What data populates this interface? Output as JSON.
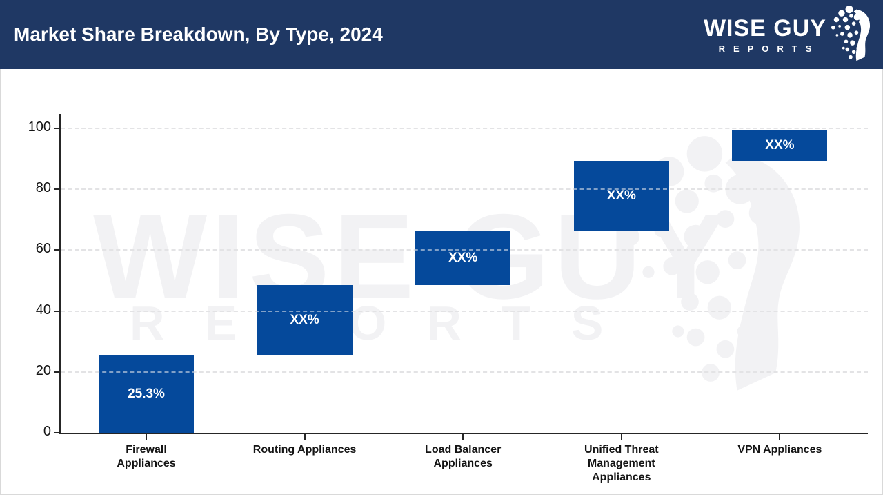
{
  "header": {
    "title": "Market Share Breakdown, By Type, 2024",
    "bg_color": "#1F3864",
    "logo": {
      "line1": "WISE GUY",
      "line2": "REPORTS"
    }
  },
  "watermark": {
    "line1": "WISE GUY",
    "line2": "REPORTS"
  },
  "chart_data": {
    "type": "bar",
    "subtype": "waterfall",
    "title": "Market Share Breakdown, By Type, 2024",
    "xlabel": "",
    "ylabel": "",
    "categories": [
      "Firewall Appliances",
      "Routing Appliances",
      "Load Balancer Appliances",
      "Unified Threat Management Appliances",
      "VPN Appliances"
    ],
    "category_lines": [
      [
        "Firewall",
        "Appliances"
      ],
      [
        "Routing Appliances"
      ],
      [
        "Load Balancer",
        "Appliances"
      ],
      [
        "Unified Threat",
        "Management",
        "Appliances"
      ],
      [
        "VPN Appliances"
      ]
    ],
    "segments": [
      {
        "category": "Firewall Appliances",
        "start": 0,
        "end": 25.3,
        "label": "25.3%"
      },
      {
        "category": "Routing Appliances",
        "start": 25.3,
        "end": 48.5,
        "label": "XX%"
      },
      {
        "category": "Load Balancer Appliances",
        "start": 48.5,
        "end": 66.4,
        "label": "XX%"
      },
      {
        "category": "Unified Threat Management Appliances",
        "start": 66.4,
        "end": 89.3,
        "label": "XX%"
      },
      {
        "category": "VPN Appliances",
        "start": 89.3,
        "end": 99.5,
        "label": "XX%"
      }
    ],
    "yticks": [
      0,
      20,
      40,
      60,
      80,
      100
    ],
    "ylim": [
      0,
      103.5
    ],
    "grid": "horizontal-dashed",
    "legend": null,
    "bar_color": "#05499B",
    "label_color": "#FFFFFF"
  }
}
